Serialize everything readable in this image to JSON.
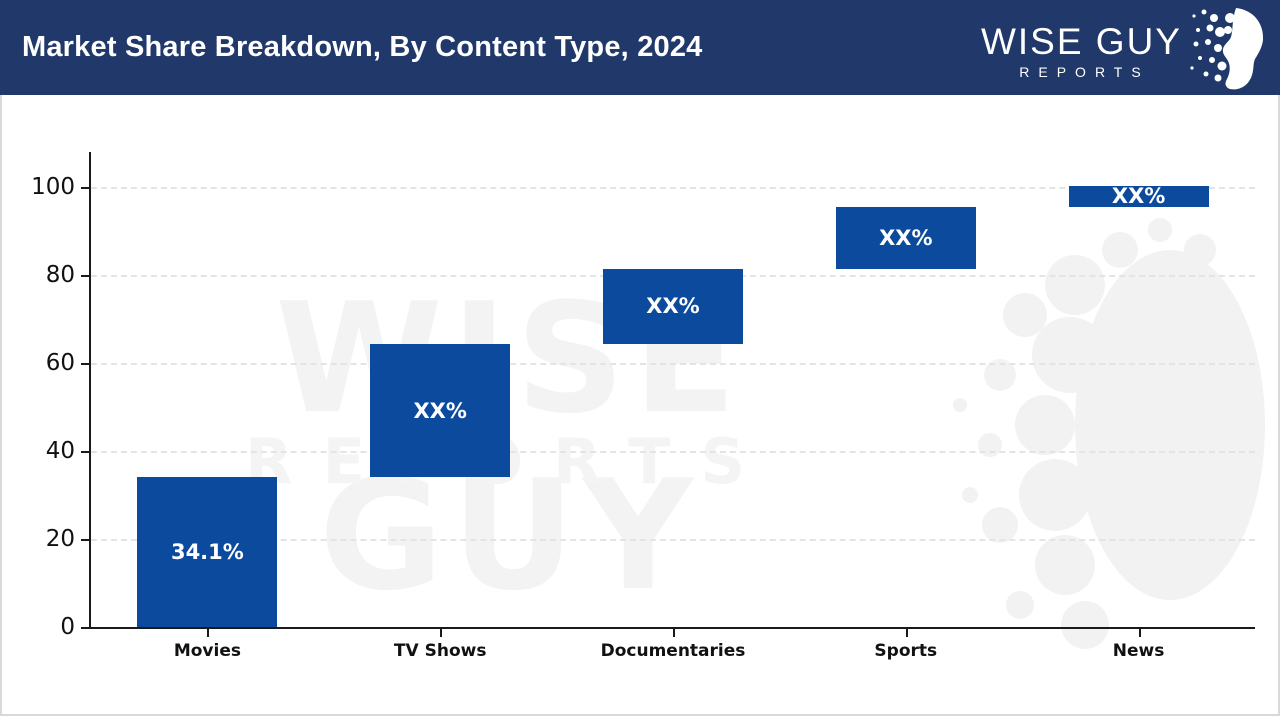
{
  "header": {
    "title": "Market Share Breakdown, By Content Type, 2024",
    "logo": {
      "line1": "WISE GUY",
      "line2": "REPORTS"
    }
  },
  "watermark": {
    "line1": "WISE GUY",
    "line2": "REPORTS"
  },
  "colors": {
    "header_bg": "#21386a",
    "bar": "#0c4a9e",
    "gridline": "#e4e4e4",
    "axis": "#1a1a1a",
    "bar_label": "#ffffff",
    "watermark": "#f3f3f3"
  },
  "chart_data": {
    "type": "bar",
    "subtype": "waterfall",
    "title": "Market Share Breakdown, By Content Type, 2024",
    "xlabel": "",
    "ylabel": "",
    "categories": [
      "Movies",
      "TV Shows",
      "Documentaries",
      "Sports",
      "News"
    ],
    "segments": [
      {
        "category": "Movies",
        "start": 0,
        "end": 34.1,
        "value_estimate": 34.1,
        "label": "34.1%"
      },
      {
        "category": "TV Shows",
        "start": 34.1,
        "end": 64.3,
        "value_estimate": 30.2,
        "label": "XX%"
      },
      {
        "category": "Documentaries",
        "start": 64.3,
        "end": 81.4,
        "value_estimate": 17.1,
        "label": "XX%"
      },
      {
        "category": "Sports",
        "start": 81.4,
        "end": 95.4,
        "value_estimate": 14.0,
        "label": "XX%"
      },
      {
        "category": "News",
        "start": 95.4,
        "end": 100.3,
        "value_estimate": 4.9,
        "label": "XX%"
      }
    ],
    "y_ticks": [
      0,
      20,
      40,
      60,
      80,
      100
    ],
    "ylim": [
      0,
      108
    ],
    "grid": "horizontal-dashed",
    "legend": "none",
    "bar_color": "#0c4a9e"
  }
}
